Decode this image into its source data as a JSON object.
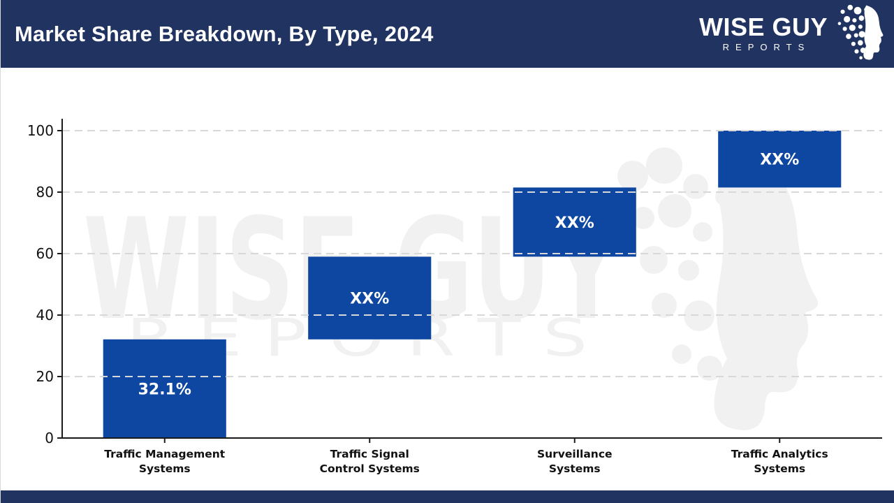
{
  "header": {
    "title": "Market Share Breakdown, By Type, 2024",
    "bg_color": "#213361",
    "logo": {
      "line1": "WISE GUY",
      "line2": "REPORTS"
    }
  },
  "watermark": {
    "line1": "WISE GUY",
    "line2": "R E P O R T S"
  },
  "footer": {
    "bg_color": "#213361"
  },
  "chart_data": {
    "type": "bar",
    "subtype": "waterfall",
    "title": "Market Share Breakdown, By Type, 2024",
    "categories": [
      "Traffic Management Systems",
      "Traffic Signal Control Systems",
      "Surveillance Systems",
      "Traffic Analytics Systems"
    ],
    "category_lines": [
      [
        "Traffic Management",
        "Systems"
      ],
      [
        "Traffic Signal",
        "Control Systems"
      ],
      [
        "Surveillance",
        "Systems"
      ],
      [
        "Traffic Analytics",
        "Systems"
      ]
    ],
    "segments": [
      {
        "label": "32.1%",
        "start": 0,
        "end": 32.1
      },
      {
        "label": "XX%",
        "start": 32.1,
        "end": 59.0
      },
      {
        "label": "XX%",
        "start": 59.0,
        "end": 81.5
      },
      {
        "label": "XX%",
        "start": 81.5,
        "end": 100.0
      }
    ],
    "y_ticks": [
      0,
      20,
      40,
      60,
      80,
      100
    ],
    "ylim": [
      0,
      100
    ],
    "grid": "dashed-horizontal-over-bars",
    "legend": "none",
    "bar_color": "#0d47a1",
    "bar_label_color": "#ffffff",
    "axis_color": "#1a1a1a",
    "grid_color": "#d8d8d8",
    "tick_label_color": "#111111"
  }
}
